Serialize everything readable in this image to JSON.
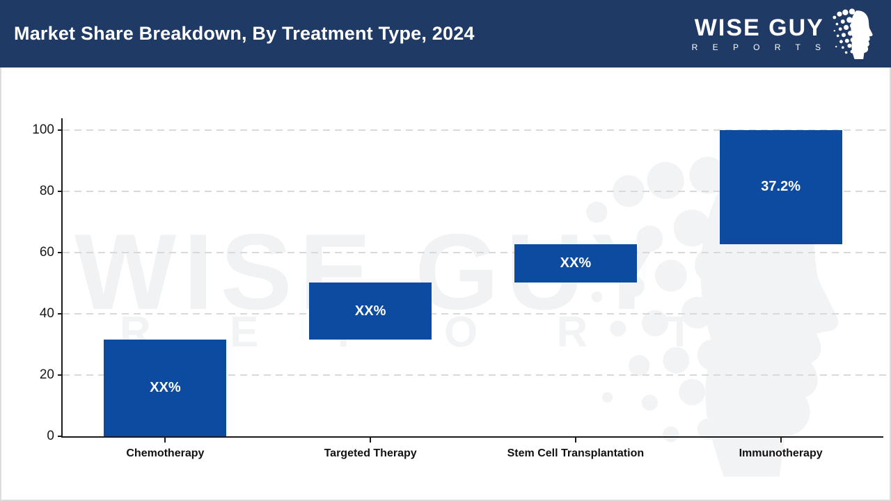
{
  "header": {
    "title": "Market Share Breakdown, By Treatment Type, 2024",
    "logo": {
      "line1": "WISE GUY",
      "line2": "R E P O R T S"
    }
  },
  "watermark": {
    "line1": "WISE GUY",
    "line2": "R E P O R T S"
  },
  "chart_data": {
    "type": "bar",
    "subtype": "floating-waterfall",
    "title": "Market Share Breakdown, By Treatment Type, 2024",
    "categories": [
      "Chemotherapy",
      "Targeted Therapy",
      "Stem Cell Transplantation",
      "Immunotherapy"
    ],
    "series": [
      {
        "name": "Market Share (%)",
        "starts": [
          0,
          31.6,
          50.2,
          62.8
        ],
        "values": [
          31.6,
          18.6,
          12.6,
          37.2
        ]
      }
    ],
    "bar_labels": [
      "XX%",
      "XX%",
      "XX%",
      "37.2%"
    ],
    "yticks": [
      0,
      20,
      40,
      60,
      80,
      100
    ],
    "ylim": [
      0,
      105
    ],
    "xlabel": "",
    "ylabel": "",
    "grid": "horizontal-dashed",
    "legend": "none"
  },
  "colors": {
    "header_bg": "#203a66",
    "bar": "#0c4b9f",
    "grid": "#d9d9d9",
    "axis": "#1a1a1a",
    "watermark": "#f1f2f4",
    "border": "#dcdcdc",
    "bar_label_text": "#ffffff",
    "title_text": "#ffffff"
  }
}
